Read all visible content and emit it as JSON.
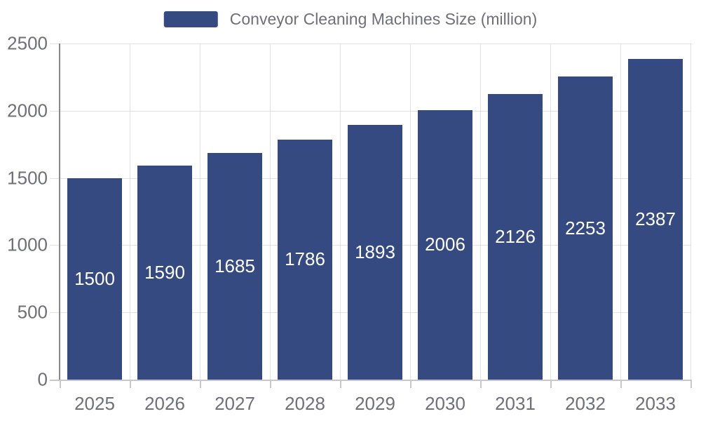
{
  "legend": {
    "label": "Conveyor Cleaning Machines Size (million)"
  },
  "chart_data": {
    "type": "bar",
    "title": "",
    "categories": [
      "2025",
      "2026",
      "2027",
      "2028",
      "2029",
      "2030",
      "2031",
      "2032",
      "2033"
    ],
    "series": [
      {
        "name": "Conveyor Cleaning Machines Size (million)",
        "values": [
          1500,
          1590,
          1685,
          1786,
          1893,
          2006,
          2126,
          2253,
          2387
        ]
      }
    ],
    "xlabel": "",
    "ylabel": "",
    "ylim": [
      0,
      2500
    ],
    "y_ticks": [
      0,
      500,
      1000,
      1500,
      2000,
      2500
    ],
    "grid": true,
    "legend_position": "top-center",
    "value_label_position": "inside-middle"
  },
  "colors": {
    "bar": "#364a82",
    "value_label": "#ffffff",
    "axis_label": "#6e7079",
    "legend_text": "#6e7079",
    "gridline": "#e2e2e2",
    "y_axis_line": "#888888",
    "x_axis_line": "#c8c8cc",
    "background": "#ffffff"
  }
}
